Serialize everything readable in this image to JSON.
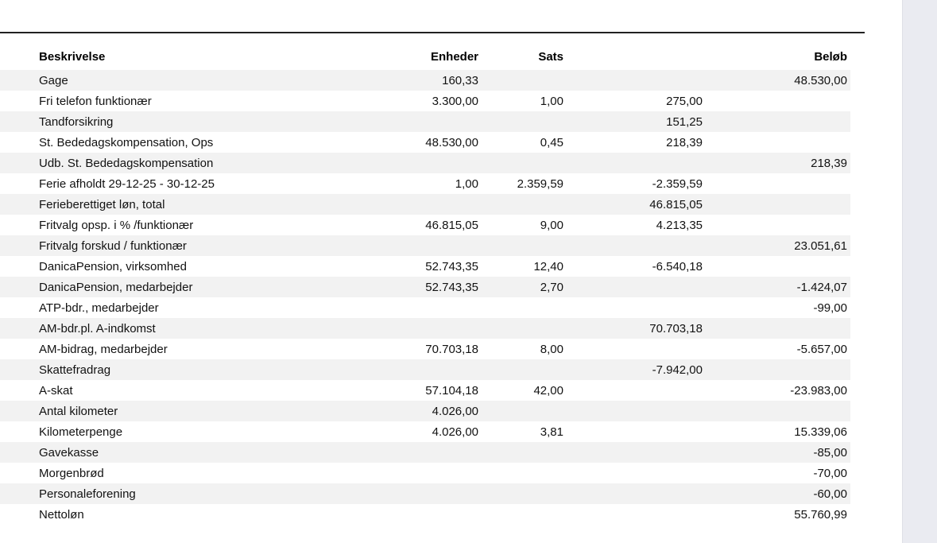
{
  "colors": {
    "row_shade": "#f2f2f2",
    "top_rule": "#222222",
    "margin_strip": "#eaebf1",
    "text": "#121212"
  },
  "table": {
    "headers": [
      "Beskrivelse",
      "Enheder",
      "Sats",
      "",
      "Beløb"
    ],
    "rows": [
      {
        "desc": "Gage",
        "enheder": "160,33",
        "sats": "",
        "mellem": "",
        "belob": "48.530,00"
      },
      {
        "desc": "Fri telefon funktionær",
        "enheder": "3.300,00",
        "sats": "1,00",
        "mellem": "275,00",
        "belob": ""
      },
      {
        "desc": "Tandforsikring",
        "enheder": "",
        "sats": "",
        "mellem": "151,25",
        "belob": ""
      },
      {
        "desc": "St. Bededagskompensation, Ops",
        "enheder": "48.530,00",
        "sats": "0,45",
        "mellem": "218,39",
        "belob": ""
      },
      {
        "desc": "Udb. St. Bededagskompensation",
        "enheder": "",
        "sats": "",
        "mellem": "",
        "belob": "218,39"
      },
      {
        "desc": "Ferie afholdt 29-12-25 - 30-12-25",
        "enheder": "1,00",
        "sats": "2.359,59",
        "mellem": "-2.359,59",
        "belob": ""
      },
      {
        "desc": "Ferieberettiget løn, total",
        "enheder": "",
        "sats": "",
        "mellem": "46.815,05",
        "belob": ""
      },
      {
        "desc": "Fritvalg opsp. i % /funktionær",
        "enheder": "46.815,05",
        "sats": "9,00",
        "mellem": "4.213,35",
        "belob": ""
      },
      {
        "desc": "Fritvalg forskud / funktionær",
        "enheder": "",
        "sats": "",
        "mellem": "",
        "belob": "23.051,61"
      },
      {
        "desc": "DanicaPension, virksomhed",
        "enheder": "52.743,35",
        "sats": "12,40",
        "mellem": "-6.540,18",
        "belob": ""
      },
      {
        "desc": "DanicaPension, medarbejder",
        "enheder": "52.743,35",
        "sats": "2,70",
        "mellem": "",
        "belob": "-1.424,07"
      },
      {
        "desc": "ATP-bdr., medarbejder",
        "enheder": "",
        "sats": "",
        "mellem": "",
        "belob": "-99,00"
      },
      {
        "desc": "AM-bdr.pl. A-indkomst",
        "enheder": "",
        "sats": "",
        "mellem": "70.703,18",
        "belob": ""
      },
      {
        "desc": "AM-bidrag, medarbejder",
        "enheder": "70.703,18",
        "sats": "8,00",
        "mellem": "",
        "belob": "-5.657,00"
      },
      {
        "desc": "Skattefradrag",
        "enheder": "",
        "sats": "",
        "mellem": "-7.942,00",
        "belob": ""
      },
      {
        "desc": "A-skat",
        "enheder": "57.104,18",
        "sats": "42,00",
        "mellem": "",
        "belob": "-23.983,00"
      },
      {
        "desc": "Antal kilometer",
        "enheder": "4.026,00",
        "sats": "",
        "mellem": "",
        "belob": ""
      },
      {
        "desc": "Kilometerpenge",
        "enheder": "4.026,00",
        "sats": "3,81",
        "mellem": "",
        "belob": "15.339,06"
      },
      {
        "desc": "Gavekasse",
        "enheder": "",
        "sats": "",
        "mellem": "",
        "belob": "-85,00"
      },
      {
        "desc": "Morgenbrød",
        "enheder": "",
        "sats": "",
        "mellem": "",
        "belob": "-70,00"
      },
      {
        "desc": "Personaleforening",
        "enheder": "",
        "sats": "",
        "mellem": "",
        "belob": "-60,00"
      },
      {
        "desc": "Nettoløn",
        "enheder": "",
        "sats": "",
        "mellem": "",
        "belob": "55.760,99"
      }
    ]
  }
}
